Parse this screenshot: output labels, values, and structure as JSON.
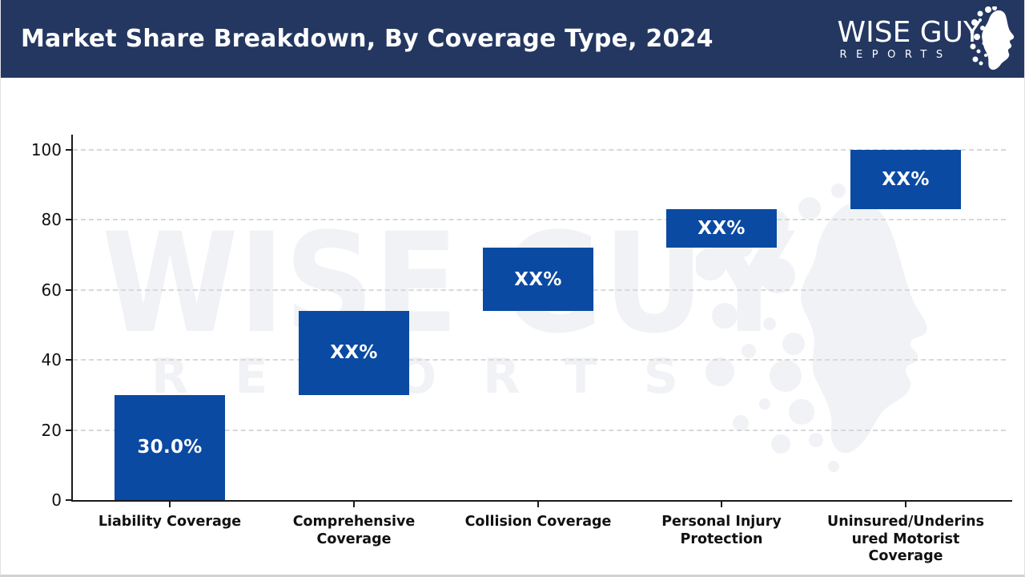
{
  "header": {
    "title": "Market Share Breakdown, By Coverage Type, 2024",
    "logo": {
      "brand": "WISE GUY",
      "sub": "REPORTS"
    }
  },
  "watermark": {
    "big": "WISE GUY",
    "sub": "REPORTS"
  },
  "colors": {
    "header_bg": "#233760",
    "bar": "#0b4aa2",
    "axis": "#1a1a1a",
    "grid": "#d8d8d8",
    "bar_label": "#ffffff",
    "text": "#111111",
    "watermark": "#f1f2f5"
  },
  "chart_data": {
    "type": "bar",
    "subtype": "waterfall-cumulative",
    "title": "Market Share Breakdown, By Coverage Type, 2024",
    "categories": [
      "Liability Coverage",
      "Comprehensive Coverage",
      "Collision Coverage",
      "Personal Injury Protection",
      "Uninsured/Underinsured Motorist Coverage"
    ],
    "category_label_lines": [
      [
        "Liability Coverage"
      ],
      [
        "Comprehensive",
        "Coverage"
      ],
      [
        "Collision Coverage"
      ],
      [
        "Personal Injury",
        "Protection"
      ],
      [
        "Uninsured/Underins",
        "ured Motorist",
        "Coverage"
      ]
    ],
    "series": [
      {
        "name": "Liability Coverage",
        "start": 0,
        "end": 30,
        "value_label": "30.0%"
      },
      {
        "name": "Comprehensive Coverage",
        "start": 30,
        "end": 54,
        "value_label": "XX%"
      },
      {
        "name": "Collision Coverage",
        "start": 54,
        "end": 72,
        "value_label": "XX%"
      },
      {
        "name": "Personal Injury Protection",
        "start": 72,
        "end": 83,
        "value_label": "XX%"
      },
      {
        "name": "Uninsured/Underinsured Motorist Coverage",
        "start": 83,
        "end": 100,
        "value_label": "XX%"
      }
    ],
    "xlabel": "",
    "ylabel": "",
    "ylim": [
      0,
      105
    ],
    "yticks": [
      0,
      20,
      40,
      60,
      80,
      100
    ],
    "grid": "horizontal-dashed",
    "legend": "none"
  }
}
